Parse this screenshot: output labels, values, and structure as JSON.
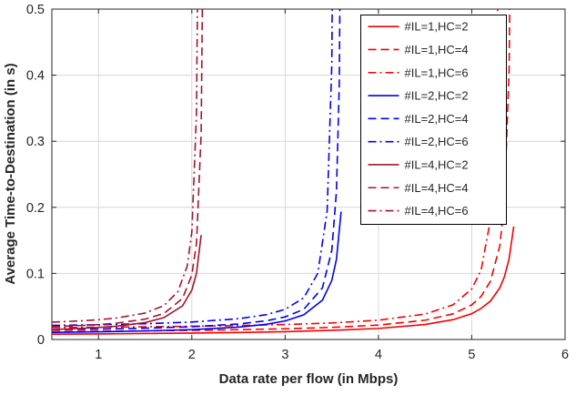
{
  "chart_data": {
    "type": "line",
    "title": "",
    "xlabel": "Data rate per flow (in Mbps)",
    "ylabel": "Average Time-to-Destination (in s)",
    "xlim": [
      0.5,
      6
    ],
    "ylim": [
      0,
      0.5
    ],
    "grid": true,
    "legend_position": "top-right",
    "x_ticks": [
      1,
      2,
      3,
      4,
      5,
      6
    ],
    "x_tick_labels": [
      "1",
      "2",
      "3",
      "4",
      "5",
      "6"
    ],
    "y_ticks": [
      0,
      0.1,
      0.2,
      0.3,
      0.4,
      0.5
    ],
    "y_tick_labels": [
      "0",
      "0.1",
      "0.2",
      "0.3",
      "0.4",
      "0.5"
    ],
    "series": [
      {
        "name": "#IL=1,HC=2",
        "color": "#f40000",
        "line_style": "solid",
        "points": [
          [
            0.5,
            0.008
          ],
          [
            1,
            0.0084
          ],
          [
            1.5,
            0.009
          ],
          [
            2,
            0.0097
          ],
          [
            2.5,
            0.0106
          ],
          [
            3,
            0.0118
          ],
          [
            3.5,
            0.0138
          ],
          [
            4,
            0.0167
          ],
          [
            4.5,
            0.0227
          ],
          [
            4.8,
            0.03
          ],
          [
            5,
            0.039
          ],
          [
            5.1,
            0.047
          ],
          [
            5.2,
            0.058
          ],
          [
            5.3,
            0.078
          ],
          [
            5.35,
            0.095
          ],
          [
            5.4,
            0.122
          ],
          [
            5.45,
            0.171
          ]
        ]
      },
      {
        "name": "#IL=1,HC=4",
        "color": "#f40000",
        "line_style": "dashed",
        "points": [
          [
            0.5,
            0.012
          ],
          [
            1,
            0.0125
          ],
          [
            1.5,
            0.0131
          ],
          [
            2,
            0.0138
          ],
          [
            2.5,
            0.0148
          ],
          [
            3,
            0.0162
          ],
          [
            3.5,
            0.0183
          ],
          [
            4,
            0.0218
          ],
          [
            4.5,
            0.0291
          ],
          [
            4.8,
            0.0388
          ],
          [
            5,
            0.0524
          ],
          [
            5.1,
            0.0651
          ],
          [
            5.2,
            0.088
          ],
          [
            5.3,
            0.1413
          ],
          [
            5.35,
            0.208
          ],
          [
            5.4,
            0.408
          ],
          [
            5.42,
            0.675
          ]
        ]
      },
      {
        "name": "#IL=1,HC=6",
        "color": "#f40000",
        "line_style": "dashdot",
        "points": [
          [
            0.5,
            0.0181
          ],
          [
            1,
            0.0186
          ],
          [
            1.5,
            0.0192
          ],
          [
            2,
            0.02
          ],
          [
            2.5,
            0.0211
          ],
          [
            3,
            0.0226
          ],
          [
            3.5,
            0.025
          ],
          [
            4,
            0.0292
          ],
          [
            4.5,
            0.0384
          ],
          [
            4.8,
            0.0525
          ],
          [
            5,
            0.0765
          ],
          [
            5.1,
            0.1049
          ],
          [
            5.2,
            0.1807
          ],
          [
            5.25,
            0.2997
          ],
          [
            5.28,
            0.514
          ]
        ]
      },
      {
        "name": "#IL=2,HC=2",
        "color": "#0000f0",
        "line_style": "solid",
        "points": [
          [
            0.5,
            0.0107
          ],
          [
            1,
            0.0116
          ],
          [
            1.5,
            0.0129
          ],
          [
            2,
            0.0149
          ],
          [
            2.5,
            0.0187
          ],
          [
            2.8,
            0.023
          ],
          [
            3,
            0.0281
          ],
          [
            3.2,
            0.0373
          ],
          [
            3.4,
            0.0596
          ],
          [
            3.5,
            0.0893
          ],
          [
            3.55,
            0.1214
          ],
          [
            3.6,
            0.1935
          ]
        ]
      },
      {
        "name": "#IL=2,HC=4",
        "color": "#0000f0",
        "line_style": "dashed",
        "points": [
          [
            0.5,
            0.0148
          ],
          [
            1,
            0.0157
          ],
          [
            1.5,
            0.0171
          ],
          [
            2,
            0.0193
          ],
          [
            2.5,
            0.0234
          ],
          [
            2.8,
            0.0283
          ],
          [
            3,
            0.0342
          ],
          [
            3.2,
            0.0457
          ],
          [
            3.4,
            0.0782
          ],
          [
            3.5,
            0.135
          ],
          [
            3.55,
            0.2243
          ],
          [
            3.58,
            0.385
          ],
          [
            3.6,
            0.76
          ]
        ]
      },
      {
        "name": "#IL=2,HC=6",
        "color": "#0000f0",
        "line_style": "dashdot",
        "points": [
          [
            0.5,
            0.0213
          ],
          [
            1,
            0.0223
          ],
          [
            1.5,
            0.0238
          ],
          [
            2,
            0.0264
          ],
          [
            2.5,
            0.0314
          ],
          [
            2.8,
            0.0376
          ],
          [
            3,
            0.0456
          ],
          [
            3.2,
            0.0631
          ],
          [
            3.35,
            0.1002
          ],
          [
            3.45,
            0.1938
          ],
          [
            3.5,
            0.416
          ],
          [
            3.52,
            0.816
          ]
        ]
      },
      {
        "name": "#IL=4,HC=2",
        "color": "#a2142f",
        "line_style": "solid",
        "points": [
          [
            0.5,
            0.0151
          ],
          [
            0.8,
            0.0167
          ],
          [
            1,
            0.0182
          ],
          [
            1.2,
            0.0202
          ],
          [
            1.5,
            0.0256
          ],
          [
            1.7,
            0.033
          ],
          [
            1.9,
            0.0509
          ],
          [
            2,
            0.0747
          ],
          [
            2.05,
            0.1003
          ],
          [
            2.1,
            0.158
          ]
        ]
      },
      {
        "name": "#IL=4,HC=4",
        "color": "#a2142f",
        "line_style": "dashed",
        "points": [
          [
            0.5,
            0.0193
          ],
          [
            0.8,
            0.021
          ],
          [
            1,
            0.0225
          ],
          [
            1.2,
            0.0248
          ],
          [
            1.5,
            0.0308
          ],
          [
            1.7,
            0.0393
          ],
          [
            1.9,
            0.062
          ],
          [
            2,
            0.0977
          ],
          [
            2.05,
            0.1453
          ],
          [
            2.1,
            0.312
          ],
          [
            2.12,
            0.612
          ]
        ]
      },
      {
        "name": "#IL=4,HC=6",
        "color": "#a2142f",
        "line_style": "dashdot",
        "points": [
          [
            0.5,
            0.0262
          ],
          [
            0.8,
            0.0281
          ],
          [
            1,
            0.0299
          ],
          [
            1.2,
            0.0326
          ],
          [
            1.5,
            0.04
          ],
          [
            1.7,
            0.0513
          ],
          [
            1.85,
            0.0722
          ],
          [
            1.95,
            0.1109
          ],
          [
            2,
            0.1624
          ],
          [
            2.05,
            0.343
          ],
          [
            2.07,
            0.668
          ]
        ]
      }
    ],
    "style": {
      "grid_color": "#d6d6d6",
      "axis_color": "#262626",
      "legend_border_color": "#000000",
      "legend_bg_color": "#ffffff"
    }
  }
}
